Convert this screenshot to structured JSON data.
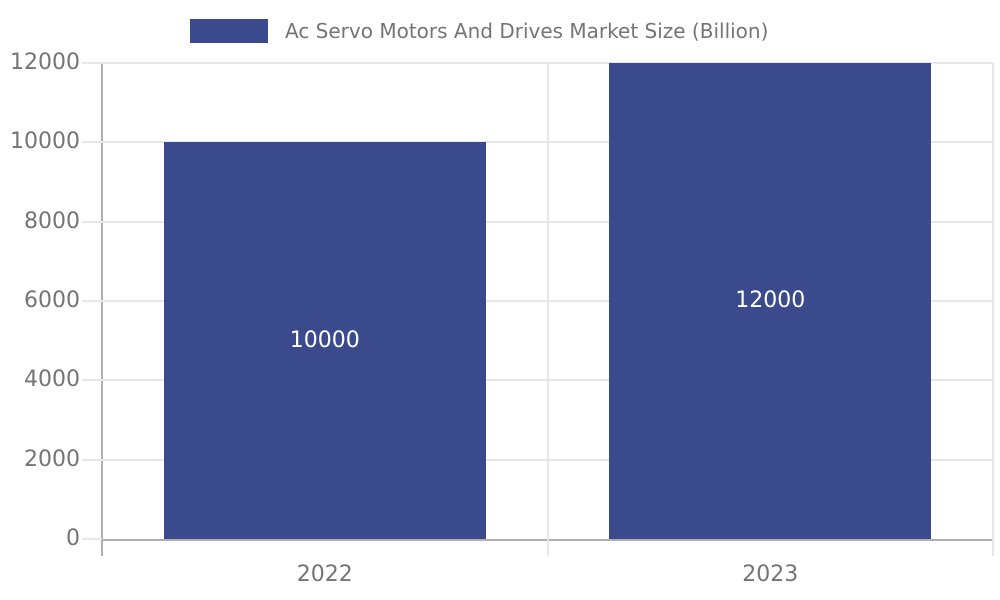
{
  "legend": {
    "label": "Ac Servo Motors And Drives Market Size (Billion)"
  },
  "chart_data": {
    "type": "bar",
    "title": "Ac Servo Motors And Drives Market Size (Billion)",
    "categories": [
      "2022",
      "2023"
    ],
    "series": [
      {
        "name": "Ac Servo Motors And Drives Market Size (Billion)",
        "values": [
          10000,
          12000
        ]
      }
    ],
    "data_labels": [
      "10000",
      "12000"
    ],
    "xlabel": "",
    "ylabel": "",
    "ylim": [
      0,
      12000
    ],
    "yticks": [
      0,
      2000,
      4000,
      6000,
      8000,
      10000,
      12000
    ],
    "grid": "horizontal gridlines at each y tick, vertical split lines at category boundaries",
    "legend_position": "top-center",
    "colors": {
      "bar": "#3A4A8C",
      "grid_line": "#e7e7e7",
      "axis_line": "#b0b0b0",
      "tick_label": "#757575",
      "legend_text": "#757575",
      "value_label": "#ffffff",
      "background": "#ffffff"
    }
  }
}
